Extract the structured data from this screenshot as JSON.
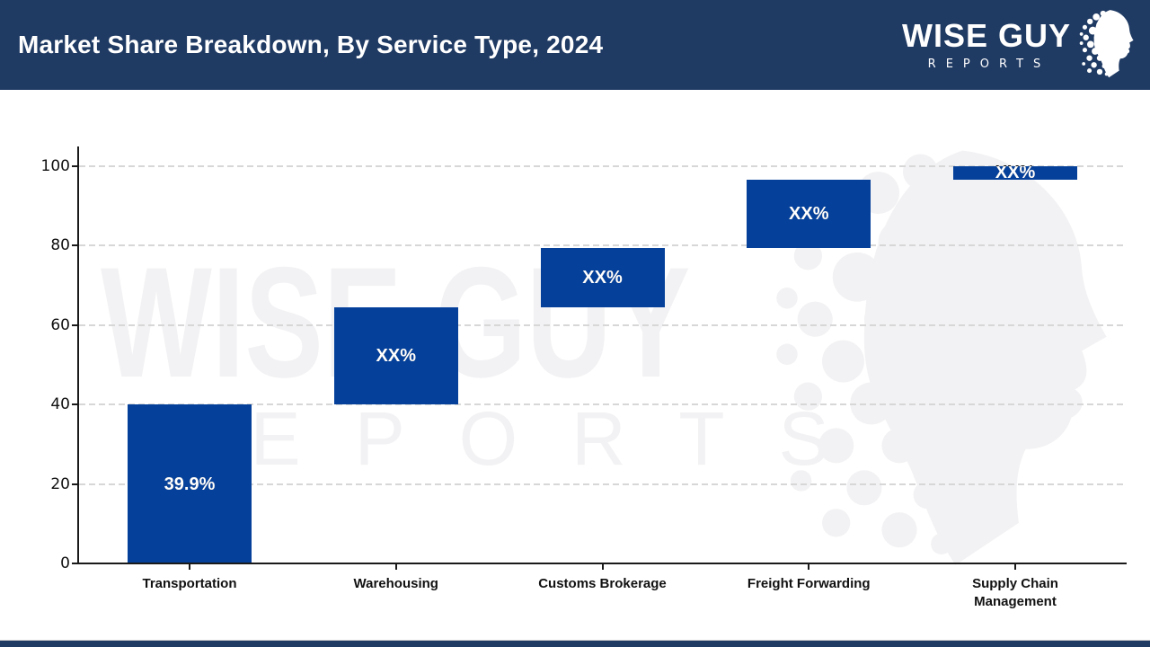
{
  "header": {
    "title": "Market Share Breakdown, By Service Type, 2024",
    "logo": {
      "wordmark": "WISE GUY",
      "subtext": "REPORTS"
    }
  },
  "watermark": {
    "wordmark": "WISE GUY",
    "subtext": "REPORTS"
  },
  "chart_data": {
    "type": "bar",
    "subtype": "waterfall",
    "title": "Market Share Breakdown, By Service Type, 2024",
    "xlabel": "",
    "ylabel": "",
    "ylim": [
      0,
      100
    ],
    "yticks": [
      0,
      20,
      40,
      60,
      80,
      100
    ],
    "grid": "horizontal-dashed",
    "legend": "none",
    "categories": [
      "Transportation",
      "Warehousing",
      "Customs Brokerage",
      "Freight Forwarding",
      "Supply Chain Management"
    ],
    "segments": [
      {
        "category": "Transportation",
        "start": 0,
        "end": 39.9,
        "label": "39.9%"
      },
      {
        "category": "Warehousing",
        "start": 39.9,
        "end": 64.3,
        "label": "XX%"
      },
      {
        "category": "Customs Brokerage",
        "start": 64.3,
        "end": 79.4,
        "label": "XX%"
      },
      {
        "category": "Freight Forwarding",
        "start": 79.4,
        "end": 96.6,
        "label": "XX%"
      },
      {
        "category": "Supply Chain Management",
        "start": 96.6,
        "end": 100,
        "label": "XX%"
      }
    ],
    "bar_color": "#05419b",
    "bar_label_color": "#ffffff",
    "header_color": "#1f3a63"
  }
}
